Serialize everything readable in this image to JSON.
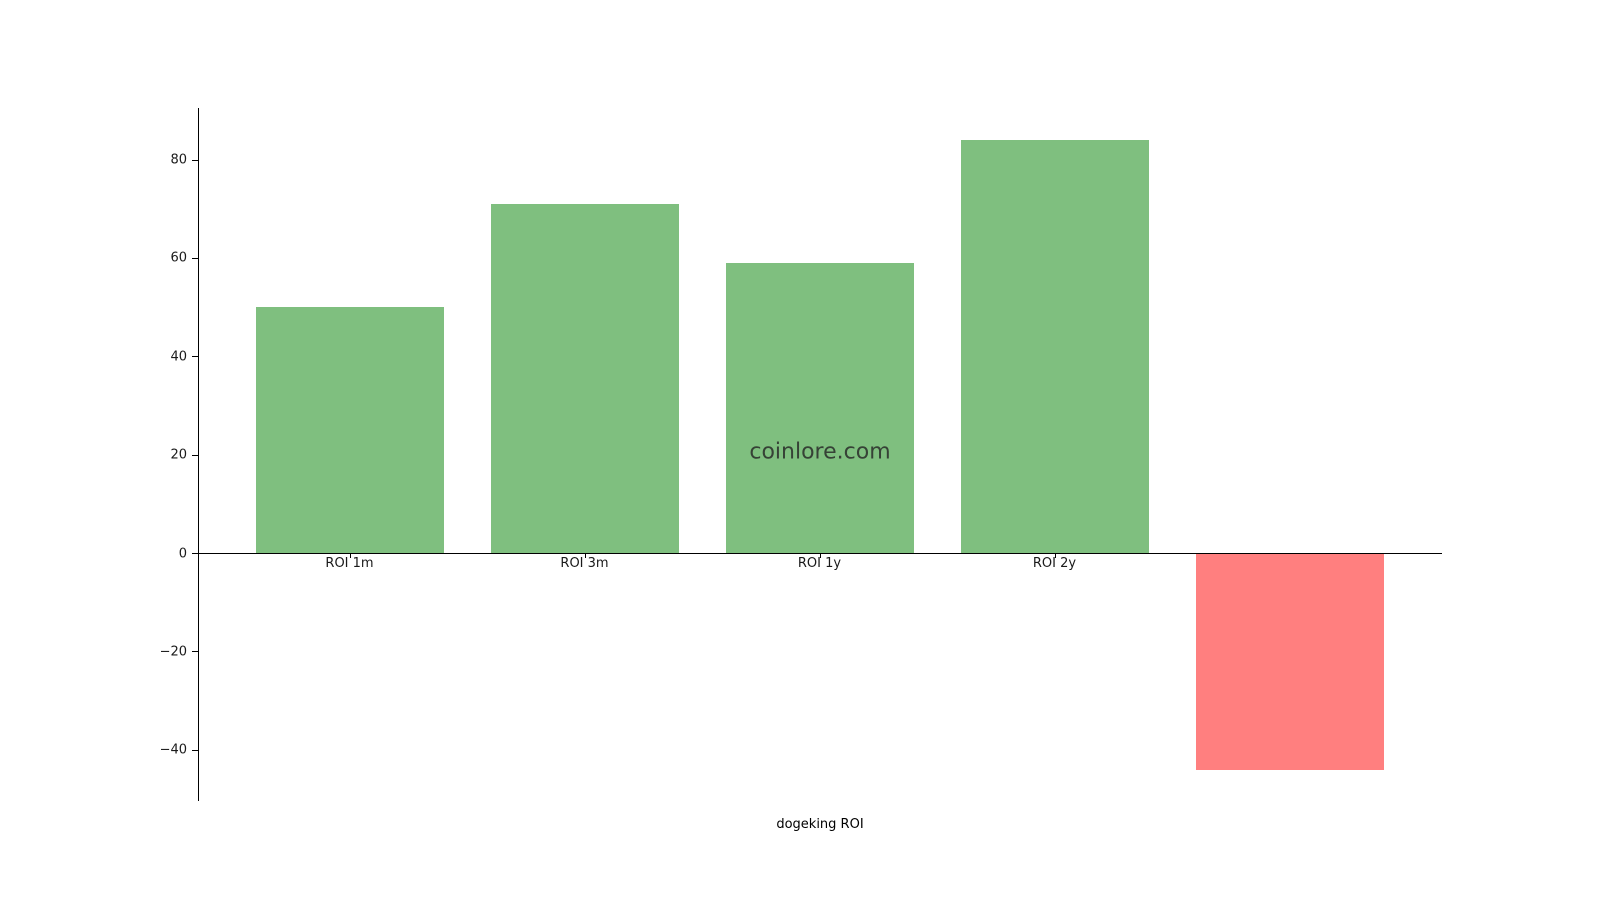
{
  "chart_data": {
    "type": "bar",
    "title": "",
    "xlabel": "dogeking ROI",
    "ylabel": "",
    "categories": [
      "ROI 1m",
      "ROI 3m",
      "ROI 1y",
      "ROI 2y",
      ""
    ],
    "values": [
      50,
      71,
      59,
      84,
      -44
    ],
    "series": [
      {
        "name": "dogeking ROI %",
        "values": [
          50,
          71,
          59,
          84,
          -44
        ]
      }
    ],
    "bar_colors": [
      "#7fbf7f",
      "#7fbf7f",
      "#7fbf7f",
      "#7fbf7f",
      "#ff7f7f"
    ],
    "positive_color": "#7fbf7f",
    "negative_color": "#ff7f7f",
    "yticks": [
      80,
      60,
      40,
      20,
      0,
      -20,
      -40
    ],
    "ylim": [
      -50.5,
      90.5
    ],
    "grid": false,
    "legend": null,
    "axis_color": "#000000",
    "background_color": "#ffffff",
    "watermark": "coinlore.com"
  }
}
